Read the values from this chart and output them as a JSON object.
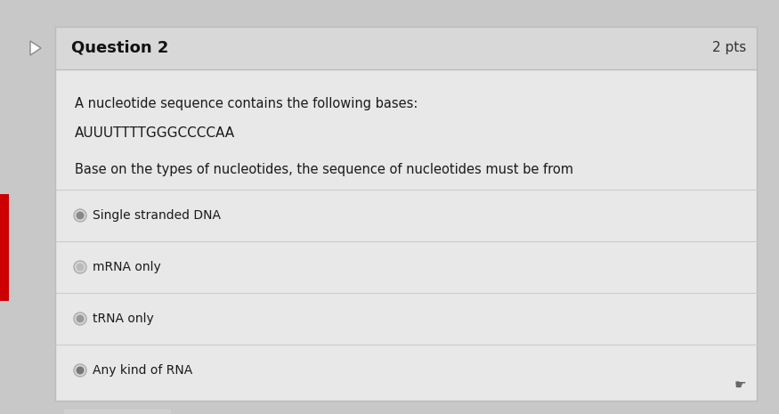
{
  "question_label": "Question 2",
  "points": "2 pts",
  "body_line1": "A nucleotide sequence contains the following bases:",
  "body_line2": "AUUUTTTTGGGCCCCAA",
  "body_line3": "Base on the types of nucleotides, the sequence of nucleotides must be from",
  "options": [
    "Single stranded DNA",
    "mRNA only",
    "tRNA only",
    "Any kind of RNA"
  ],
  "bg_outer": "#c8c8c8",
  "bg_content": "#e8e8e8",
  "bg_header": "#d8d8d8",
  "bg_white": "#ffffff",
  "border_color": "#bbbbbb",
  "text_color": "#1a1a1a",
  "header_text_color": "#111111",
  "radio_outer_color": "#aaaaaa",
  "radio_fill_colors": [
    "#888888",
    "#bbbbbb",
    "#999999",
    "#777777"
  ],
  "left_accent_color": "#cc0000",
  "divider_color": "#cccccc",
  "pts_color": "#333333"
}
